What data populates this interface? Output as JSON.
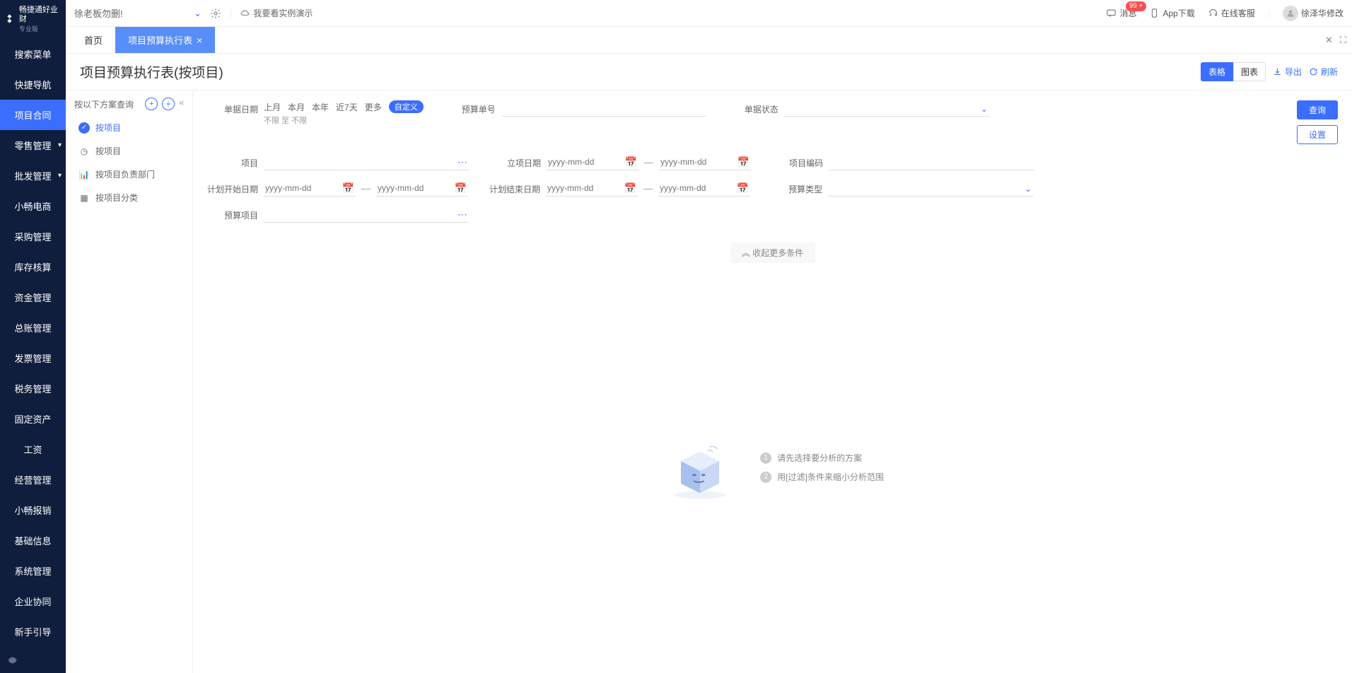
{
  "brand": {
    "name": "畅捷通好业财",
    "edition": "专业版"
  },
  "topbar": {
    "company": "徐老板勿删!",
    "demo": "我要看实例演示",
    "msg": "消息",
    "msg_badge": "99 +",
    "download": "App下载",
    "support": "在线客服",
    "user": "徐泽华修改"
  },
  "sidebar": {
    "items": [
      {
        "label": "搜索菜单",
        "arrow": false
      },
      {
        "label": "快捷导航",
        "arrow": false
      },
      {
        "label": "项目合同",
        "arrow": false,
        "active": true
      },
      {
        "label": "零售管理",
        "arrow": true
      },
      {
        "label": "批发管理",
        "arrow": true
      },
      {
        "label": "小畅电商",
        "arrow": false
      },
      {
        "label": "采购管理",
        "arrow": false
      },
      {
        "label": "库存核算",
        "arrow": false
      },
      {
        "label": "资金管理",
        "arrow": false
      },
      {
        "label": "总账管理",
        "arrow": false
      },
      {
        "label": "发票管理",
        "arrow": false
      },
      {
        "label": "税务管理",
        "arrow": false
      },
      {
        "label": "固定资产",
        "arrow": false
      },
      {
        "label": "工资",
        "arrow": false
      },
      {
        "label": "经营管理",
        "arrow": false
      },
      {
        "label": "小畅报销",
        "arrow": false
      },
      {
        "label": "基础信息",
        "arrow": false
      },
      {
        "label": "系统管理",
        "arrow": false
      },
      {
        "label": "企业协同",
        "arrow": false
      },
      {
        "label": "新手引导",
        "arrow": false
      }
    ]
  },
  "tabs": {
    "home": "首页",
    "current": "项目预算执行表"
  },
  "page": {
    "title": "项目预算执行表(按项目)",
    "view_table": "表格",
    "view_chart": "图表",
    "export": "导出",
    "refresh": "刷新"
  },
  "scheme": {
    "header": "按以下方案查询",
    "items": [
      {
        "label": "按项目",
        "icon": "target",
        "active": true
      },
      {
        "label": "按项目",
        "icon": "clock"
      },
      {
        "label": "按项目负责部门",
        "icon": "chart"
      },
      {
        "label": "按项目分类",
        "icon": "grid"
      }
    ]
  },
  "filters": {
    "doc_date_label": "单据日期",
    "presets": {
      "last_month": "上月",
      "this_month": "本月",
      "this_year": "本年",
      "last7": "近7天",
      "more": "更多",
      "custom": "自定义"
    },
    "range_text": "不限 至 不限",
    "budget_no_label": "预算单号",
    "doc_status_label": "单据状态",
    "project_label": "项目",
    "proj_date_label": "立项日期",
    "proj_code_label": "项目编码",
    "plan_start_label": "计划开始日期",
    "plan_end_label": "计划结束日期",
    "budget_type_label": "预算类型",
    "budget_item_label": "预算项目",
    "date_placeholder": "yyyy-mm-dd",
    "query": "查询",
    "settings": "设置",
    "collapse": "收起更多条件"
  },
  "empty": {
    "line1": "请先选择要分析的方案",
    "line2": "用[过滤]条件来缩小分析范围"
  },
  "colors": {
    "primary": "#3b6eff",
    "sidebar_bg": "#0f1e3d",
    "danger": "#ff4d4f"
  }
}
